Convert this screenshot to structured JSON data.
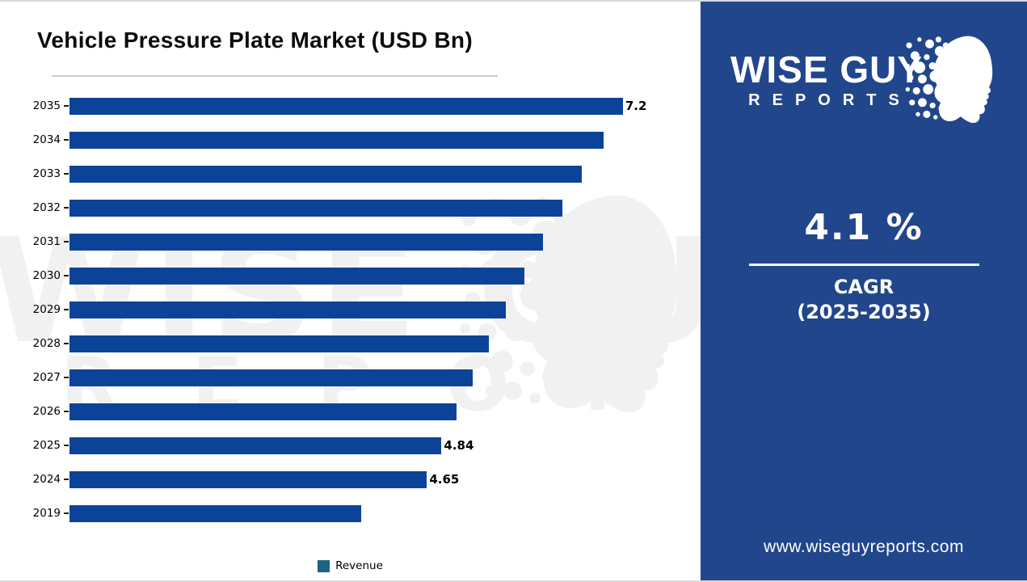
{
  "chart_data": {
    "type": "bar",
    "orientation": "horizontal",
    "title": "Vehicle Pressure Plate Market (USD Bn)",
    "categories": [
      "2035",
      "2034",
      "2033",
      "2032",
      "2031",
      "2030",
      "2029",
      "2028",
      "2027",
      "2026",
      "2025",
      "2024",
      "2019"
    ],
    "values": [
      7.2,
      6.95,
      6.67,
      6.41,
      6.16,
      5.92,
      5.68,
      5.46,
      5.25,
      5.04,
      4.84,
      4.65,
      3.8
    ],
    "bar_labels": [
      "7.2",
      "",
      "",
      "",
      "",
      "",
      "",
      "",
      "",
      "",
      "4.84",
      "4.65",
      ""
    ],
    "xlim": [
      0,
      8.2
    ],
    "xlabel": "",
    "ylabel": "",
    "grid": false,
    "bar_color": "#0b4399",
    "legend": {
      "label": "Revenue",
      "position": "bottom-center",
      "swatch_color": "#1f6287"
    }
  },
  "watermark": {
    "line1": "WISE GU",
    "line2": "R E P O R T S"
  },
  "brand": {
    "panel_color": "#21468b",
    "logo": {
      "line1": "WISE GUY",
      "line2": "REPORTS"
    },
    "cagr": {
      "value": "4.1 %",
      "label_line1": "CAGR",
      "label_line2": "(2025-2035)"
    },
    "website": "www.wiseguyreports.com"
  }
}
